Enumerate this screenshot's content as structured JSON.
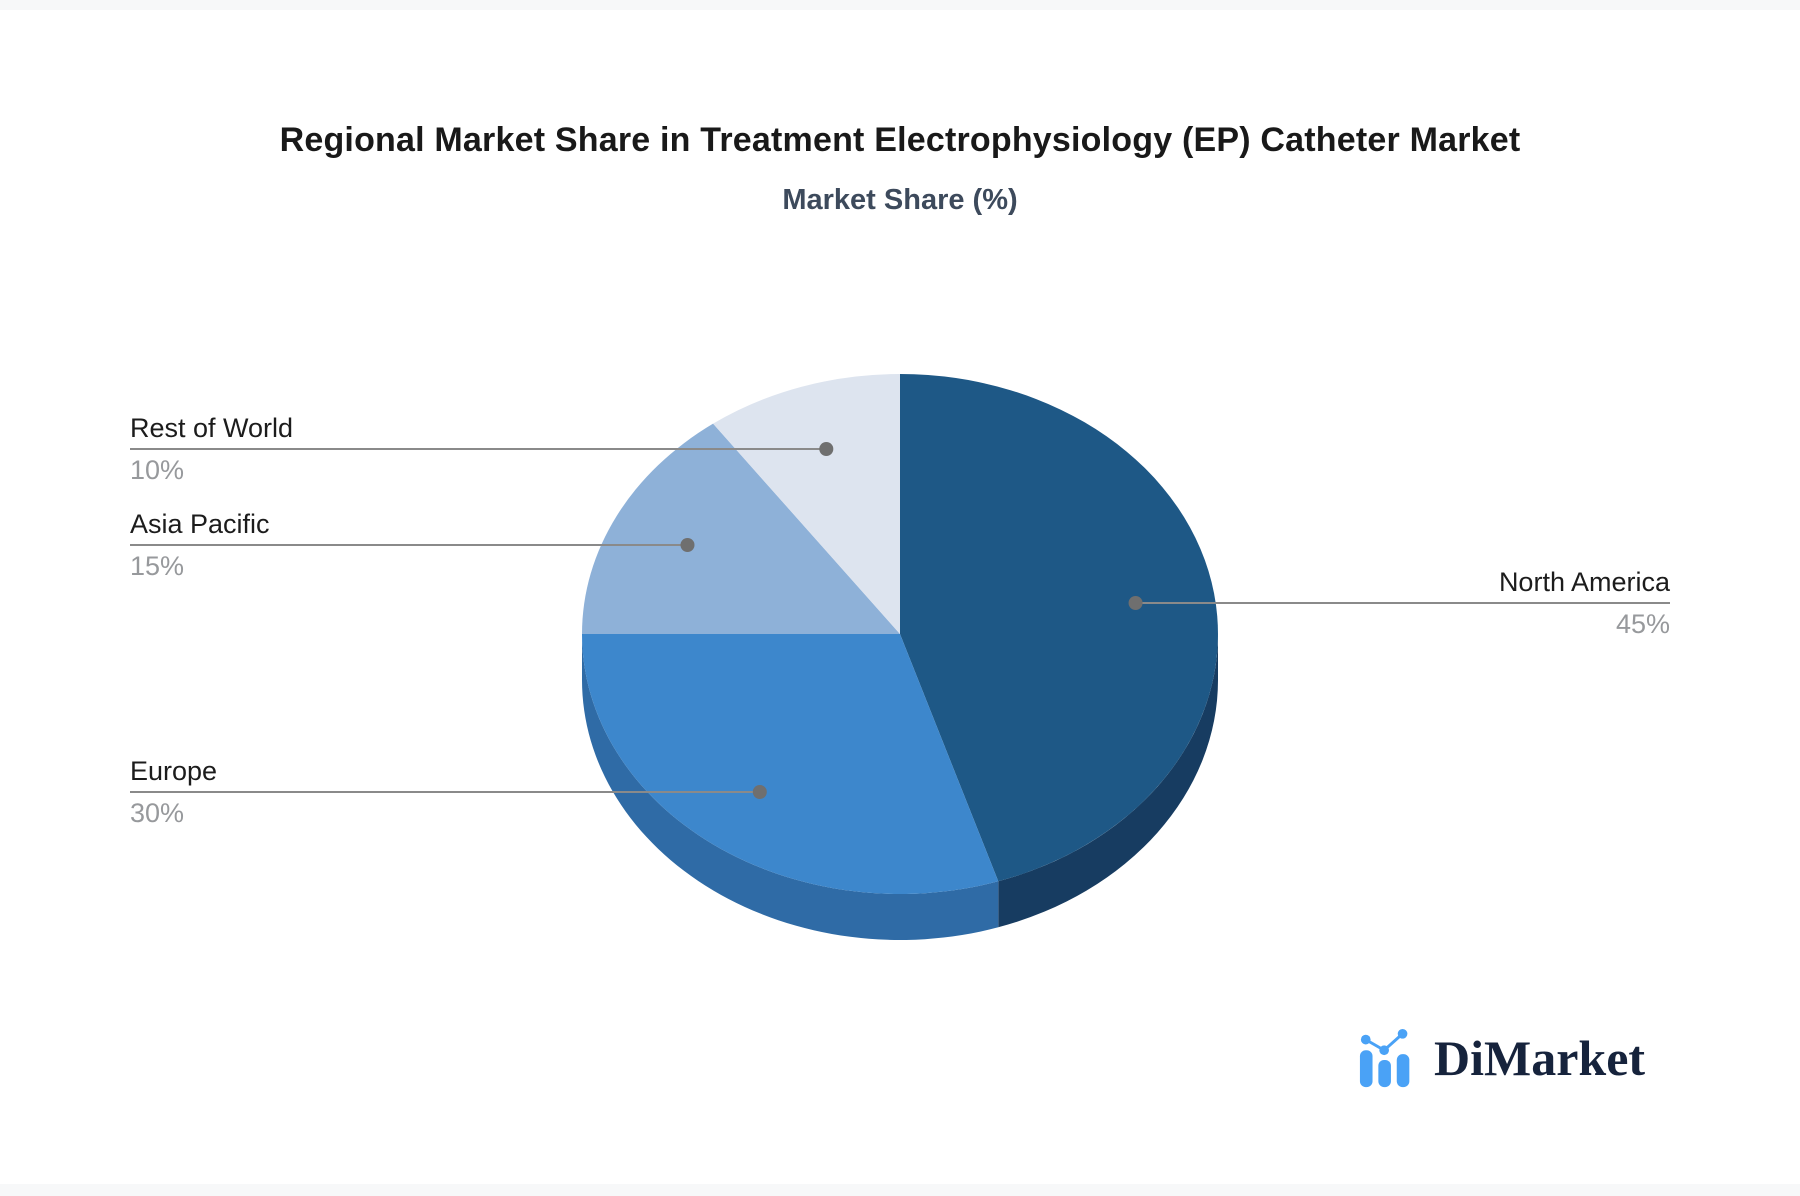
{
  "page": {
    "title": "Regional Market Share in Treatment Electrophysiology (EP) Catheter Market",
    "subtitle": "Market Share (%)"
  },
  "chart_data": {
    "type": "pie",
    "title": "Regional Market Share in Treatment Electrophysiology (EP) Catheter Market",
    "subtitle": "Market Share (%)",
    "unit": "%",
    "start_angle_deg": 0,
    "direction": "clockwise",
    "style_3d": true,
    "slices": [
      {
        "label": "North America",
        "value": 45,
        "pct_label": "45%",
        "color": "#1e5886",
        "side_color": "#173c61",
        "label_side": "right"
      },
      {
        "label": "Europe",
        "value": 30,
        "pct_label": "30%",
        "color": "#3d87cc",
        "side_color": "#2f6ba6",
        "label_side": "left"
      },
      {
        "label": "Asia Pacific",
        "value": 15,
        "pct_label": "15%",
        "color": "#8eb1d8",
        "side_color": "#7da0c7",
        "label_side": "left"
      },
      {
        "label": "Rest of World",
        "value": 10,
        "pct_label": "10%",
        "color": "#dde4ef",
        "side_color": "#c6d1e0",
        "label_side": "left"
      }
    ],
    "style": {
      "leader_line_color": "#8a8a8a",
      "leader_dot_color": "#6f6f6f",
      "label_color": "#1c1c1c",
      "pct_color": "#97999c"
    }
  },
  "branding": {
    "logo_text": "DiMarket",
    "logo_icon": "bar-chart-trend-icon",
    "logo_accent_color": "#4aa2f6",
    "logo_text_color": "#16233c"
  }
}
